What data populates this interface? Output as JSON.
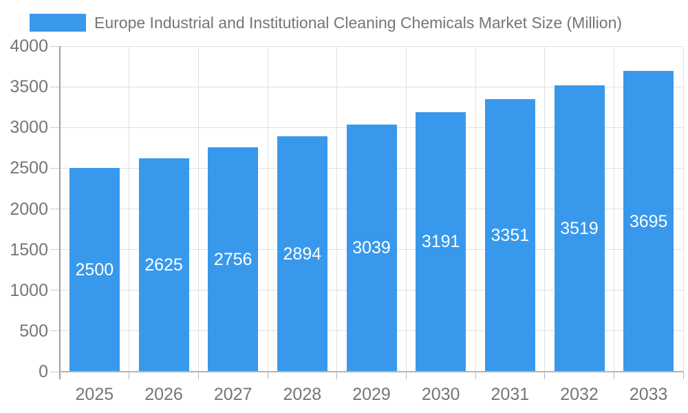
{
  "chart_data": {
    "type": "bar",
    "title": "Europe Industrial and Institutional Cleaning Chemicals Market Size (Million)",
    "categories": [
      "2025",
      "2026",
      "2027",
      "2028",
      "2029",
      "2030",
      "2031",
      "2032",
      "2033"
    ],
    "values": [
      2500,
      2625,
      2756,
      2894,
      3039,
      3191,
      3351,
      3519,
      3695
    ],
    "xlabel": "",
    "ylabel": "",
    "ylim": [
      0,
      4000
    ],
    "yticks": [
      0,
      500,
      1000,
      1500,
      2000,
      2500,
      3000,
      3500,
      4000
    ],
    "grid": true,
    "legend_position": "top-left",
    "series_name": "Europe Industrial and Institutional Cleaning Chemicals Market Size (Million)",
    "value_labels_inside_bars": true
  },
  "colors": {
    "bar": "#3899ec",
    "value_label": "#ffffff",
    "axis_text": "#757575",
    "title_text": "#757575",
    "gridline": "#e0e0e0",
    "axis_line": "#9e9e9e",
    "baseline": "#b3b3b3",
    "y_tick_stub": "#cccccc"
  }
}
